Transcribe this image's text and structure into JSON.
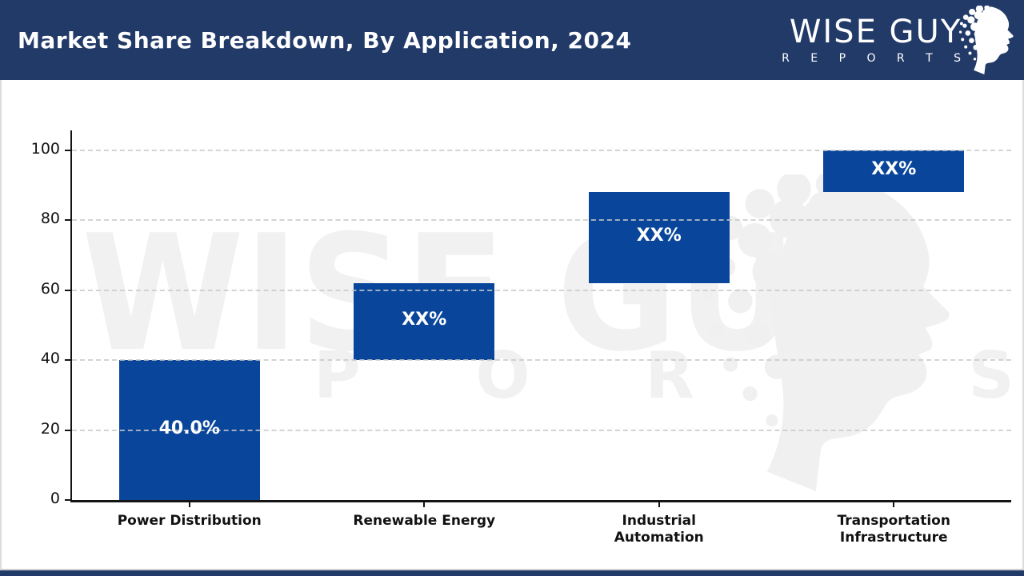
{
  "header": {
    "title": "Market Share Breakdown, By Application, 2024",
    "logo": {
      "line1": "WISE GUY",
      "line2": "R E P O R T S",
      "icon": "dotted-head-logo"
    }
  },
  "watermark": {
    "line1": "WISE GUY",
    "line2": "P O R T S",
    "icon": "dotted-head-watermark"
  },
  "colors": {
    "header_bg": "#223A68",
    "footer_bg": "#223A68",
    "bar_color": "#09469B",
    "bar_label_color": "#ffffff",
    "grid_color": "#c8c8c8",
    "axis_color": "#141414",
    "watermark_color": "#f1f1f1",
    "title_color": "#ffffff"
  },
  "chart_data": {
    "type": "bar",
    "subtype": "waterfall",
    "title": "Market Share Breakdown, By Application, 2024",
    "xlabel": "",
    "ylabel": "",
    "ylim": [
      0,
      100
    ],
    "yticks": [
      0,
      20,
      40,
      60,
      80,
      100
    ],
    "grid": "horizontal-dashed, drawn over bars",
    "legend": "none",
    "categories": [
      "Power Distribution",
      "Renewable Energy",
      "Industrial\nAutomation",
      "Transportation\nInfrastructure"
    ],
    "bars": [
      {
        "category": "Power Distribution",
        "start": 0,
        "end": 40,
        "value": 40,
        "label": "40.0%"
      },
      {
        "category": "Renewable Energy",
        "start": 40,
        "end": 62,
        "value": 22,
        "label": "XX%"
      },
      {
        "category": "Industrial\nAutomation",
        "start": 62,
        "end": 88,
        "value": 26,
        "label": "XX%"
      },
      {
        "category": "Transportation\nInfrastructure",
        "start": 88,
        "end": 100,
        "value": 12,
        "label": "XX%"
      }
    ]
  }
}
